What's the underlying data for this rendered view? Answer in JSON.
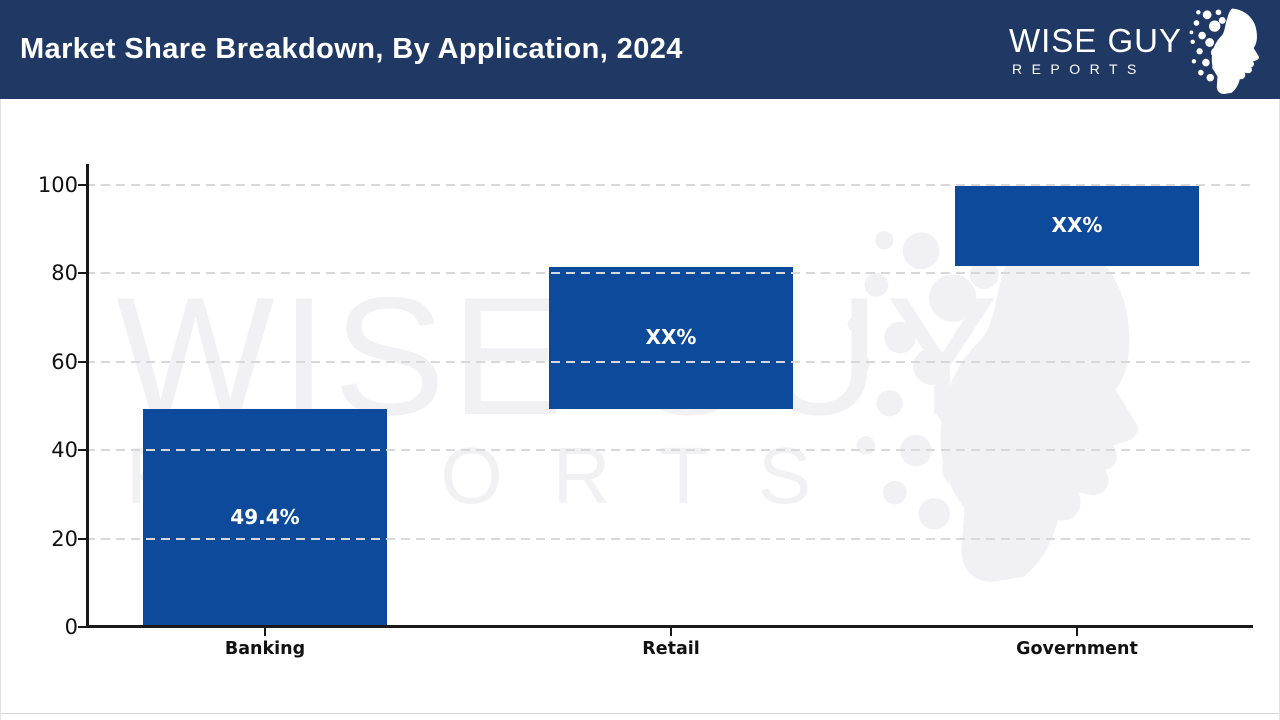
{
  "header": {
    "title": "Market Share Breakdown, By Application, 2024",
    "background_color": "#203864",
    "logo": {
      "line1": "WISE GUY",
      "line2": "REPORTS"
    }
  },
  "watermark": {
    "line1": "WISE GUY",
    "line2": "REPORTS"
  },
  "chart_data": {
    "type": "bar",
    "subtype": "floating-waterfall",
    "title": "Market Share Breakdown, By Application, 2024",
    "categories": [
      "Banking",
      "Retail",
      "Government"
    ],
    "segments": [
      {
        "category": "Banking",
        "label": "49.4%",
        "start": 0,
        "end": 49.4
      },
      {
        "category": "Retail",
        "label": "XX%",
        "start": 49.4,
        "end": 81.4
      },
      {
        "category": "Government",
        "label": "XX%",
        "start": 81.7,
        "end": 99.8
      }
    ],
    "xlabel": "",
    "ylabel": "",
    "ylim": [
      0,
      100
    ],
    "yticks": [
      0,
      20,
      40,
      60,
      80,
      100
    ],
    "grid": {
      "horizontal": true,
      "style": "dashed",
      "color": "#d8d8d8"
    },
    "legend": "none",
    "bar_color": "#0d4a9c",
    "bar_label_color": "#ffffff",
    "axis_color": "#1a1a1a",
    "tick_label_color": "#111111"
  }
}
